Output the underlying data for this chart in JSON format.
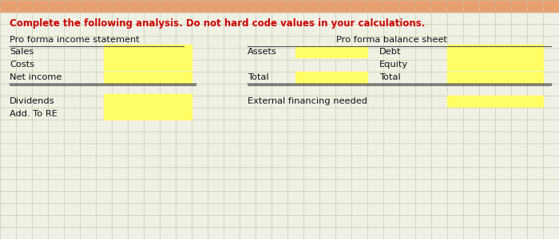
{
  "title": "Complete the following analysis. Do not hard code values in your calculations.",
  "title_color": "#cc0000",
  "title_fontsize": 8.5,
  "bg_color": "#deded0",
  "cell_color": "#f0f0e4",
  "grid_color": "#c0c0a8",
  "yellow": "#ffff66",
  "orange_top": "#e8a070",
  "left_section_header": "Pro forma income statement",
  "right_section_header": "Pro forma balance sheet",
  "left_rows": [
    "Sales",
    "Costs",
    "Net income"
  ],
  "left_rows2": [
    "Dividends",
    "Add. To RE"
  ],
  "right_rows_left": [
    "Assets",
    "",
    "Total"
  ],
  "right_rows_right": [
    "Debt",
    "Equity",
    "Total"
  ],
  "efn_label": "External financing needed",
  "fig_w": 7.0,
  "fig_h": 3.0,
  "dpi": 100
}
